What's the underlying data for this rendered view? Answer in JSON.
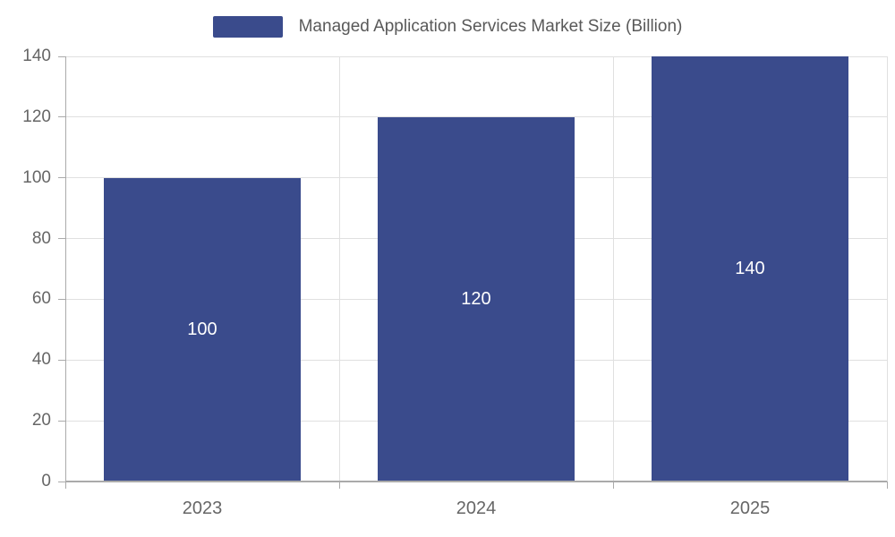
{
  "legend": {
    "label": "Managed Application Services Market Size (Billion)"
  },
  "colors": {
    "background": "#ffffff",
    "bar": "#3A4B8C",
    "grid_line": "#E0E0E0",
    "axis_line": "#AAAAAA",
    "tick_label": "#666666",
    "legend_text": "#595959",
    "value_label": "#FFFFFF"
  },
  "chart_data": {
    "type": "bar",
    "title": "Managed Application Services Market Size (Billion)",
    "series_name": "Managed Application Services Market Size (Billion)",
    "categories": [
      "2023",
      "2024",
      "2025"
    ],
    "values": [
      100,
      120,
      140
    ],
    "value_labels": [
      "100",
      "120",
      "140"
    ],
    "value_label_position": "inside-center",
    "xlabel": "",
    "ylabel": "",
    "ylim": [
      0,
      140
    ],
    "ytick_step": 20,
    "ytick_labels": [
      "0",
      "20",
      "40",
      "60",
      "80",
      "100",
      "120",
      "140"
    ],
    "grid": true,
    "legend_position": "top-center",
    "bar_width_fraction": 0.72
  }
}
